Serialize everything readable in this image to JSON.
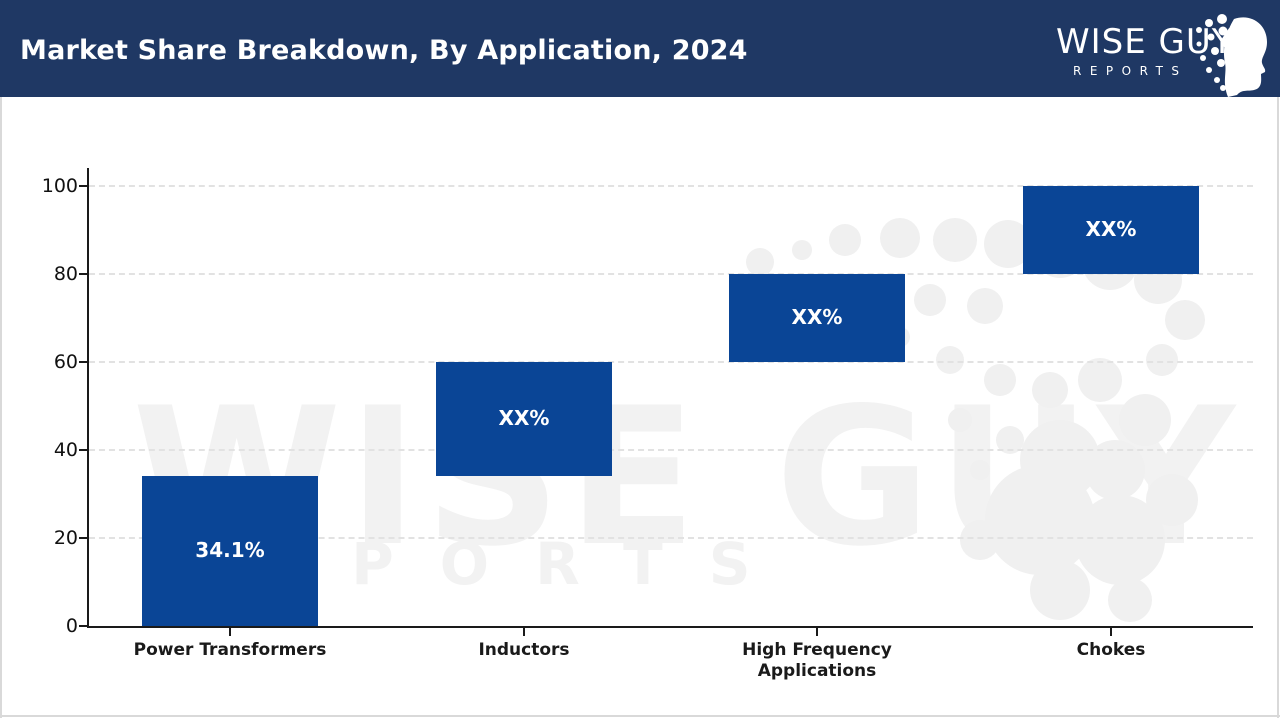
{
  "header": {
    "title": "Market Share Breakdown, By Application, 2024",
    "logo": {
      "name_top": "WISE GUY",
      "name_bottom": "REPORTS"
    }
  },
  "watermark": {
    "line1": "WISE GUY",
    "line2": "REPORTS"
  },
  "chart_data": {
    "type": "bar",
    "subtype": "waterfall",
    "title": "Market Share Breakdown, By Application, 2024",
    "categories": [
      "Power Transformers",
      "Inductors",
      "High Frequency\nApplications",
      "Chokes"
    ],
    "segments": [
      {
        "category": "Power Transformers",
        "start": 0,
        "end": 34.1,
        "label": "34.1%"
      },
      {
        "category": "Inductors",
        "start": 34.1,
        "end": 60,
        "label": "XX%"
      },
      {
        "category": "High Frequency Applications",
        "start": 60,
        "end": 80,
        "label": "XX%"
      },
      {
        "category": "Chokes",
        "start": 80,
        "end": 100,
        "label": "XX%"
      }
    ],
    "bar_labels": [
      "34.1%",
      "XX%",
      "XX%",
      "XX%"
    ],
    "y_ticks": [
      0,
      20,
      40,
      60,
      80,
      100
    ],
    "ylim": [
      0,
      105
    ],
    "xlabel": "",
    "ylabel": "",
    "grid": "horizontal-dashed",
    "legend": "none"
  },
  "colors": {
    "header_bg": "#1f3864",
    "bar": "#0a4596",
    "grid": "#e2e2e2",
    "axis": "#1a1a1a",
    "watermark": "#f2f2f2",
    "frame": "#d9d9d9",
    "bar_label": "#ffffff"
  }
}
